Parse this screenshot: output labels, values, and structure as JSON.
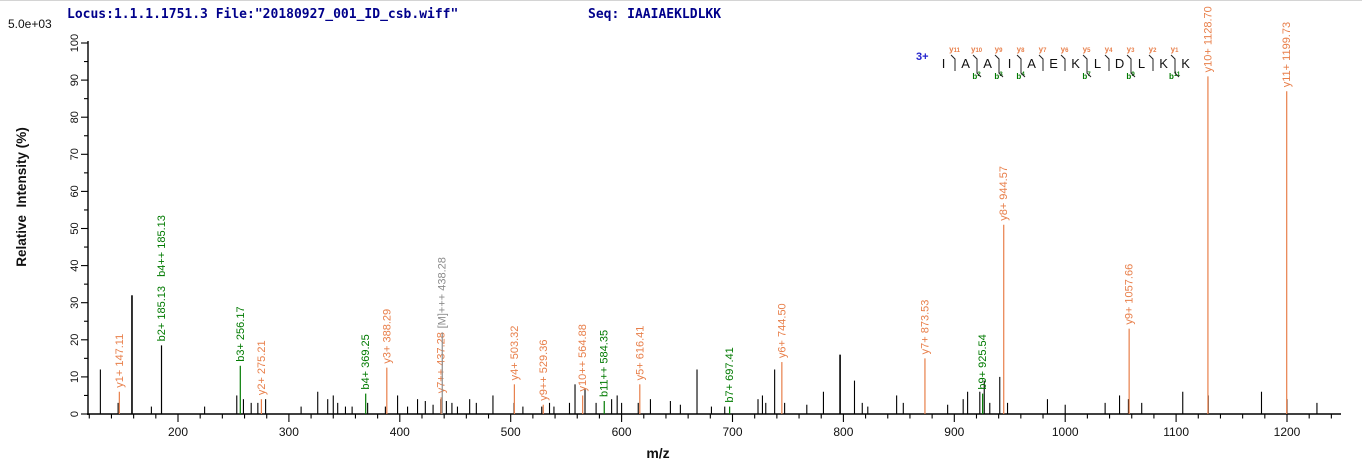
{
  "header": {
    "locus_file": "Locus:1.1.1.1751.3 File:\"20180927_001_ID_csb.wiff\"",
    "seq_label": "Seq: IAAIAEKLDLKK",
    "intensity_scale": "5.0e+03"
  },
  "colors": {
    "y_ion": "#E87F4A",
    "b_ion": "#007A00",
    "precursor": "#8C8C8C",
    "peak_black": "#000000",
    "header_text": "#00008B",
    "charge_blue": "#2323CD"
  },
  "peptide_diagram": {
    "charge": "3+",
    "residues": [
      "I",
      "A",
      "A",
      "I",
      "A",
      "E",
      "K",
      "L",
      "D",
      "L",
      "K",
      "K"
    ],
    "y_positions": [
      1,
      2,
      3,
      4,
      5,
      6,
      7,
      8,
      9,
      10,
      11
    ],
    "b_positions": [
      2,
      3,
      4,
      7,
      9,
      11
    ]
  },
  "chart_data": {
    "type": "bar",
    "subtype": "mass-spectrum",
    "xlabel": "m/z",
    "ylabel": "Relative  Intensity (%)",
    "x_range": [
      119,
      1246
    ],
    "y_range": [
      0,
      100
    ],
    "x_ticks_labeled": [
      200,
      300,
      400,
      500,
      600,
      700,
      800,
      900,
      1000,
      1100,
      1200
    ],
    "x_minor_step": 20,
    "y_ticks_labeled": [
      0,
      10,
      20,
      30,
      40,
      50,
      60,
      70,
      80,
      90,
      100
    ],
    "y_minor_step": 5,
    "grid": false,
    "annotated_peaks": [
      {
        "labels": [
          "y1+ 147.11"
        ],
        "mz": 147.11,
        "intensity": 6,
        "ion": "y"
      },
      {
        "labels": [
          "b2+ 185.13",
          "b4++ 185.13"
        ],
        "mz": 185.13,
        "intensity": 18.5,
        "ion": "b",
        "line_color": "#000000"
      },
      {
        "labels": [
          "b3+ 256.17"
        ],
        "mz": 256.17,
        "intensity": 13,
        "ion": "b"
      },
      {
        "labels": [
          "y2+ 275.21"
        ],
        "mz": 275.21,
        "intensity": 4,
        "ion": "y"
      },
      {
        "labels": [
          "b4+ 369.25"
        ],
        "mz": 369.25,
        "intensity": 5.5,
        "ion": "b"
      },
      {
        "labels": [
          "y3+ 388.29"
        ],
        "mz": 388.29,
        "intensity": 12.5,
        "ion": "y"
      },
      {
        "labels": [
          "y7++ 437.28"
        ],
        "mz": 437.28,
        "intensity": 4.5,
        "ion": "y"
      },
      {
        "labels": [
          "[M]+++ 438.28"
        ],
        "mz": 438.28,
        "intensity": 22,
        "ion": "precursor"
      },
      {
        "labels": [
          "y4+ 503.32"
        ],
        "mz": 503.32,
        "intensity": 8,
        "ion": "y"
      },
      {
        "labels": [
          "y9++ 529.36"
        ],
        "mz": 529.36,
        "intensity": 2.5,
        "ion": "y"
      },
      {
        "labels": [
          "y10++ 564.88"
        ],
        "mz": 564.88,
        "intensity": 5,
        "ion": "y"
      },
      {
        "labels": [
          "b11++ 584.35"
        ],
        "mz": 584.35,
        "intensity": 3.5,
        "ion": "b"
      },
      {
        "labels": [
          "y5+ 616.41"
        ],
        "mz": 616.41,
        "intensity": 8,
        "ion": "y"
      },
      {
        "labels": [
          "b7+ 697.41"
        ],
        "mz": 697.41,
        "intensity": 2,
        "ion": "b"
      },
      {
        "labels": [
          "y6+ 744.50"
        ],
        "mz": 744.5,
        "intensity": 14,
        "ion": "y"
      },
      {
        "labels": [
          "y7+ 873.53"
        ],
        "mz": 873.53,
        "intensity": 15,
        "ion": "y"
      },
      {
        "labels": [
          "b9+ 925.54"
        ],
        "mz": 925.54,
        "intensity": 5.5,
        "ion": "b"
      },
      {
        "labels": [
          "y8+ 944.57"
        ],
        "mz": 944.57,
        "intensity": 51,
        "ion": "y"
      },
      {
        "labels": [
          "y9+ 1057.66"
        ],
        "mz": 1057.66,
        "intensity": 23,
        "ion": "y"
      },
      {
        "labels": [
          "y10+ 1128.70"
        ],
        "mz": 1128.7,
        "intensity": 91,
        "ion": "y"
      },
      {
        "labels": [
          "y11+ 1199.73"
        ],
        "mz": 1199.73,
        "intensity": 87,
        "ion": "y"
      }
    ],
    "background_peaks": [
      [
        130,
        12
      ],
      [
        146,
        3
      ],
      [
        158.5,
        32
      ],
      [
        176,
        2
      ],
      [
        224,
        2
      ],
      [
        253,
        5
      ],
      [
        259,
        4
      ],
      [
        266,
        3
      ],
      [
        272,
        3
      ],
      [
        279,
        4
      ],
      [
        311,
        2
      ],
      [
        326,
        6
      ],
      [
        335,
        4
      ],
      [
        340,
        5
      ],
      [
        344,
        3
      ],
      [
        351,
        2
      ],
      [
        357,
        2
      ],
      [
        371,
        3
      ],
      [
        387,
        2
      ],
      [
        398,
        5
      ],
      [
        407,
        2
      ],
      [
        416,
        4
      ],
      [
        423,
        3.5
      ],
      [
        430,
        2.5
      ],
      [
        437,
        4
      ],
      [
        442,
        3.5
      ],
      [
        447,
        3
      ],
      [
        452,
        2
      ],
      [
        463,
        4
      ],
      [
        469,
        3
      ],
      [
        484,
        5
      ],
      [
        503,
        3
      ],
      [
        511,
        2
      ],
      [
        528,
        2
      ],
      [
        535,
        3
      ],
      [
        539,
        2
      ],
      [
        553,
        3
      ],
      [
        558,
        8
      ],
      [
        567,
        7
      ],
      [
        577,
        3
      ],
      [
        591,
        4
      ],
      [
        596,
        5
      ],
      [
        600,
        3
      ],
      [
        615,
        3
      ],
      [
        626,
        4
      ],
      [
        644,
        3.5
      ],
      [
        653,
        2.5
      ],
      [
        668,
        12
      ],
      [
        681,
        2
      ],
      [
        693,
        2
      ],
      [
        723,
        4
      ],
      [
        727,
        5
      ],
      [
        730,
        3
      ],
      [
        738,
        12
      ],
      [
        747,
        3
      ],
      [
        767,
        2.5
      ],
      [
        782,
        6
      ],
      [
        797,
        16
      ],
      [
        810,
        9
      ],
      [
        817,
        3
      ],
      [
        822,
        2
      ],
      [
        848,
        5
      ],
      [
        854,
        3
      ],
      [
        894,
        2.5
      ],
      [
        908,
        4
      ],
      [
        912,
        6
      ],
      [
        923,
        6
      ],
      [
        927,
        9
      ],
      [
        932,
        3
      ],
      [
        941,
        10
      ],
      [
        948,
        3
      ],
      [
        984,
        4
      ],
      [
        1000,
        2.5
      ],
      [
        1036,
        3
      ],
      [
        1049,
        5
      ],
      [
        1057,
        4
      ],
      [
        1069,
        3
      ],
      [
        1106,
        6
      ],
      [
        1129,
        5
      ],
      [
        1177,
        6
      ],
      [
        1200,
        4
      ],
      [
        1227,
        3
      ]
    ]
  }
}
